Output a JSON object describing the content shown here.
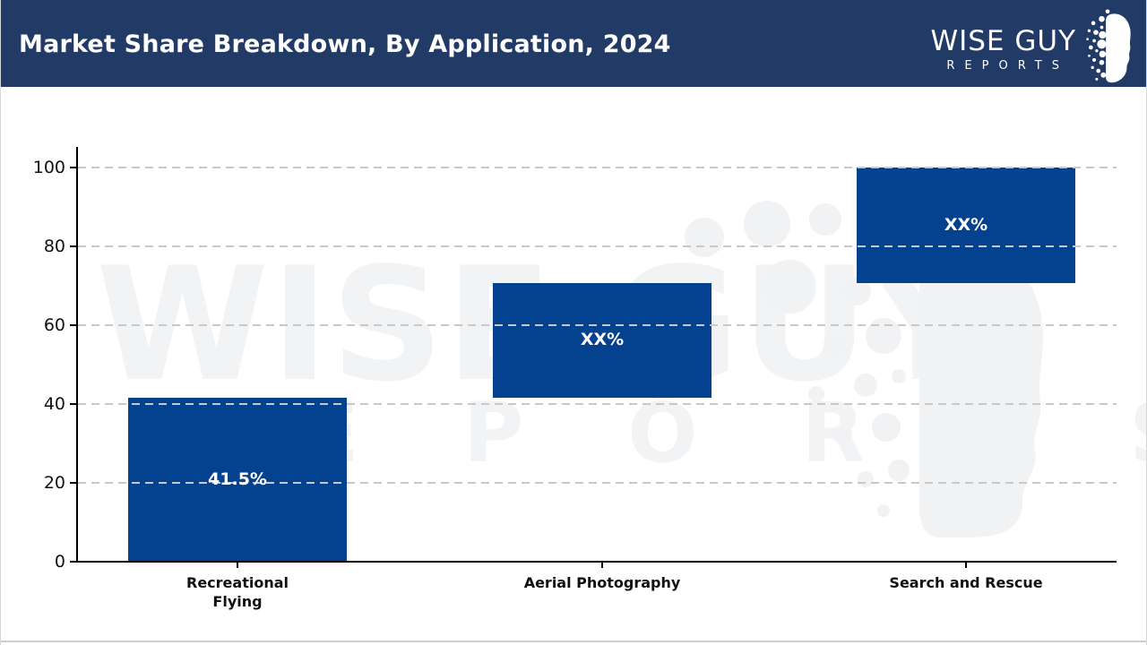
{
  "header": {
    "title": "Market Share Breakdown, By Application, 2024",
    "logo": {
      "primary": "WISE GUY",
      "secondary": "REPORTS",
      "icon": "dotted-face-profile"
    }
  },
  "watermark": {
    "line1": "WISE GUY",
    "line2": "R E P O R T S"
  },
  "chart_data": {
    "type": "bar",
    "subtype": "floating-segment waterfall of market share",
    "title": "Market Share Breakdown, By Application, 2024",
    "xlabel": "",
    "ylabel": "",
    "ylim": [
      0,
      100
    ],
    "yticks": [
      0,
      20,
      40,
      60,
      80,
      100
    ],
    "grid": "horizontal dashed lines drawn above bars",
    "legend": "none",
    "categories": [
      "Recreational\nFlying",
      "Aerial Photography",
      "Search and Rescue"
    ],
    "segments": [
      {
        "category": "Recreational Flying",
        "start": 0,
        "end": 41.5,
        "label": "41.5%"
      },
      {
        "category": "Aerial Photography",
        "start": 41.5,
        "end": 70.5,
        "label": "XX%"
      },
      {
        "category": "Search and Rescue",
        "start": 70.5,
        "end": 100,
        "label": "XX%"
      }
    ],
    "colors": {
      "bar": "#04418f",
      "bar_label": "#ffffff",
      "grid": "#c8c8c8",
      "axis": "#000000",
      "tick_text": "#111111"
    }
  },
  "colors": {
    "header_bg": "#213a66",
    "page_bg": "#ffffff",
    "watermark": "#f2f3f5"
  }
}
